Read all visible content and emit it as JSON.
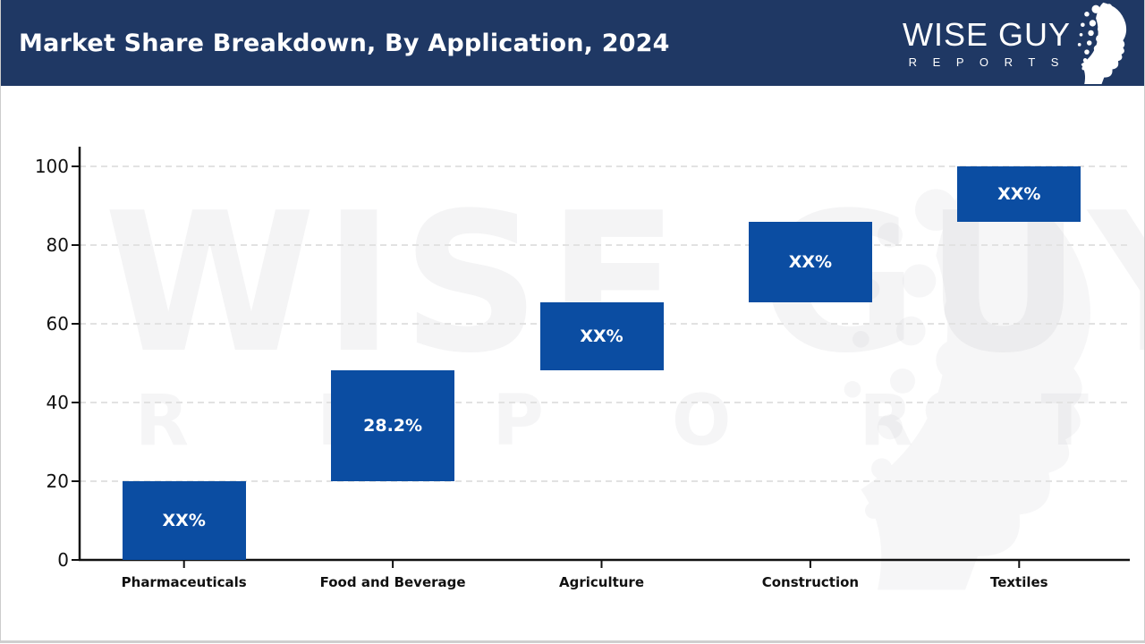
{
  "header": {
    "title": "Market Share Breakdown, By Application, 2024",
    "bg_color": "#1f3864",
    "logo": {
      "name": "WISE GUY",
      "sub": "R E P O R T S"
    }
  },
  "watermark": {
    "line1": "WISE GUY",
    "line2": "R E P O R T S"
  },
  "chart_data": {
    "type": "bar",
    "subtype": "waterfall",
    "title": "Market Share Breakdown, By Application, 2024",
    "xlabel": "",
    "ylabel": "",
    "categories": [
      "Pharmaceuticals",
      "Food and Beverage",
      "Agriculture",
      "Construction",
      "Textiles"
    ],
    "segments": [
      {
        "category": "Pharmaceuticals",
        "start": 0,
        "end": 20,
        "value": 20,
        "label": "XX%"
      },
      {
        "category": "Food and Beverage",
        "start": 20,
        "end": 48.2,
        "value": 28.2,
        "label": "28.2%"
      },
      {
        "category": "Agriculture",
        "start": 48.2,
        "end": 65.5,
        "value": 17.3,
        "label": "XX%"
      },
      {
        "category": "Construction",
        "start": 65.5,
        "end": 85.8,
        "value": 20.3,
        "label": "XX%"
      },
      {
        "category": "Textiles",
        "start": 85.8,
        "end": 100,
        "value": 14.2,
        "label": "XX%"
      }
    ],
    "y_ticks": [
      0,
      20,
      40,
      60,
      80,
      100
    ],
    "ylim": [
      0,
      105
    ],
    "bar_color": "#0b4da2",
    "axis_color": "#111111",
    "grid": "horizontal dashed",
    "grid_color": "#e2e2e2",
    "legend": "none"
  }
}
